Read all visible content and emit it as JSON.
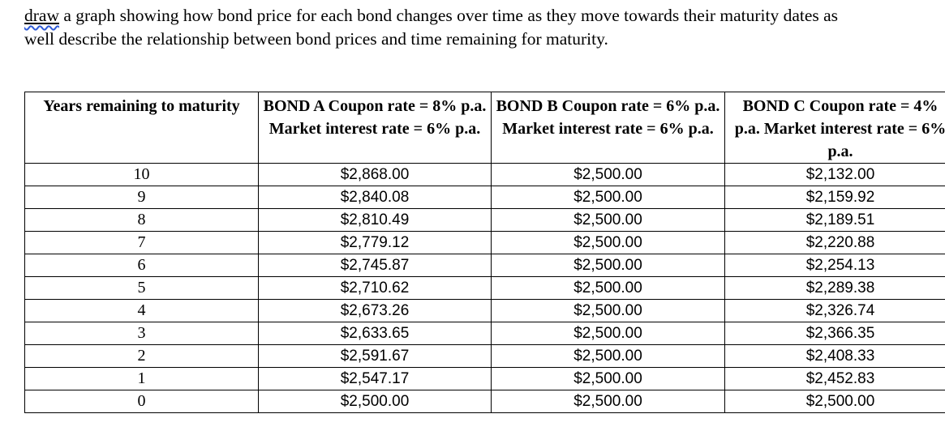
{
  "colors": {
    "squiggle": "#2f5bd7",
    "text": "#000000",
    "background": "#ffffff",
    "table_border": "#000000"
  },
  "paragraph": {
    "underlined_word": "draw",
    "line1_rest": " a graph showing how bond price for each bond changes over time as they move towards their maturity dates as",
    "line2": "well describe the relationship between bond prices and time remaining for maturity."
  },
  "table": {
    "headers": [
      "Years remaining to maturity",
      "BOND A Coupon rate = 8% p.a. Market interest rate = 6% p.a.",
      "BOND B Coupon rate = 6% p.a. Market interest rate = 6% p.a.",
      "BOND C Coupon rate = 4% p.a. Market interest rate = 6% p.a."
    ],
    "rows": [
      [
        "10",
        "$2,868.00",
        "$2,500.00",
        "$2,132.00"
      ],
      [
        "9",
        "$2,840.08",
        "$2,500.00",
        "$2,159.92"
      ],
      [
        "8",
        "$2,810.49",
        "$2,500.00",
        "$2,189.51"
      ],
      [
        "7",
        "$2,779.12",
        "$2,500.00",
        "$2,220.88"
      ],
      [
        "6",
        "$2,745.87",
        "$2,500.00",
        "$2,254.13"
      ],
      [
        "5",
        "$2,710.62",
        "$2,500.00",
        "$2,289.38"
      ],
      [
        "4",
        "$2,673.26",
        "$2,500.00",
        "$2,326.74"
      ],
      [
        "3",
        "$2,633.65",
        "$2,500.00",
        "$2,366.35"
      ],
      [
        "2",
        "$2,591.67",
        "$2,500.00",
        "$2,408.33"
      ],
      [
        "1",
        "$2,547.17",
        "$2,500.00",
        "$2,452.83"
      ],
      [
        "0",
        "$2,500.00",
        "$2,500.00",
        "$2,500.00"
      ]
    ]
  }
}
